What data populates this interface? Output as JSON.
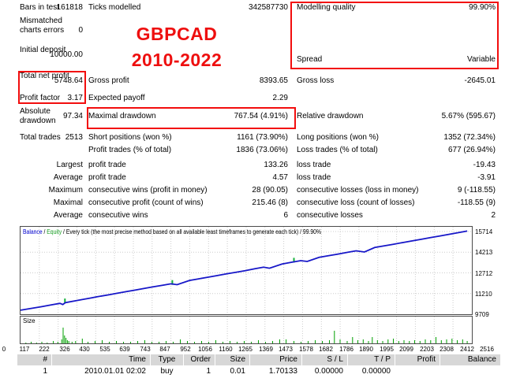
{
  "accent_red": "#f20d0d",
  "watermark": {
    "symbol": "GBPCAD",
    "period": "2010-2022"
  },
  "summary": {
    "rows": [
      {
        "c1l": "Bars in test",
        "c1v": "161818",
        "c2l": "Ticks modelled",
        "c2v": "342587730",
        "c3l": "Modelling quality",
        "c3v": "99.90%"
      },
      {
        "c1l": "Mismatched charts errors",
        "c1v": "0"
      },
      {
        "c1l": "Initial deposit",
        "c1v": "10000.00",
        "c3l": "Spread",
        "c3v": "Variable"
      },
      {
        "c1l": "Total net profit",
        "c1v": "5748.64",
        "c2l": "Gross profit",
        "c2v": "8393.65",
        "c3l": "Gross loss",
        "c3v": "-2645.01"
      },
      {
        "c1l": "Profit factor",
        "c1v": "3.17",
        "c2l": "Expected payoff",
        "c2v": "2.29"
      },
      {
        "c1l": "Absolute drawdown",
        "c1v": "97.34",
        "c2l": "Maximal drawdown",
        "c2v": "767.54 (4.91%)",
        "c3l": "Relative drawdown",
        "c3v": "5.67% (595.67)"
      },
      {
        "c1l": "Total trades",
        "c1v": "2513",
        "c2l": "Short positions (won %)",
        "c2v": "1161 (73.90%)",
        "c3l": "Long positions (won %)",
        "c3v": "1352 (72.34%)"
      },
      {
        "c2l": "Profit trades (% of total)",
        "c2v": "1836 (73.06%)",
        "c3l": "Loss trades (% of total)",
        "c3v": "677 (26.94%)"
      },
      {
        "c1v": "Largest",
        "c2l": "profit trade",
        "c2v": "133.26",
        "c3l": "loss trade",
        "c3v": "-19.43"
      },
      {
        "c1v": "Average",
        "c2l": "profit trade",
        "c2v": "4.57",
        "c3l": "loss trade",
        "c3v": "-3.91"
      },
      {
        "c1v": "Maximum",
        "c2l": "consecutive wins (profit in money)",
        "c2v": "28 (90.05)",
        "c3l": "consecutive losses (loss in money)",
        "c3v": "9 (-118.55)"
      },
      {
        "c1v": "Maximal",
        "c2l": "consecutive profit (count of wins)",
        "c2v": "215.46 (8)",
        "c3l": "consecutive loss (count of losses)",
        "c3v": "-118.55 (9)"
      },
      {
        "c1v": "Average",
        "c2l": "consecutive wins",
        "c2v": "6",
        "c3l": "consecutive losses",
        "c3v": "2"
      }
    ]
  },
  "chart_data": {
    "type": "line",
    "legend": {
      "balance_label": "Balance",
      "equity_label": "Equity",
      "separator": " / ",
      "description": "Every tick (the most precise method based on all available least timeframes to generate each tick)",
      "quality": "99.90%"
    },
    "balance_color": "#1717c8",
    "equity_color": "#15b03c",
    "grid_color": "#cccccc",
    "y_ticks": [
      15714,
      14213,
      12712,
      11210,
      9709
    ],
    "x_ticks": [
      0,
      117,
      222,
      326,
      430,
      535,
      639,
      743,
      847,
      952,
      1056,
      1160,
      1265,
      1369,
      1473,
      1578,
      1682,
      1786,
      1890,
      1995,
      2099,
      2203,
      2308,
      2412,
      2516
    ],
    "x_max": 2542,
    "y_value_top": 16060,
    "y_value_bottom": 9709,
    "series": [
      {
        "name": "Balance",
        "points": [
          [
            0,
            10000
          ],
          [
            80,
            10170
          ],
          [
            117,
            10250
          ],
          [
            180,
            10400
          ],
          [
            222,
            10500
          ],
          [
            238,
            10415
          ],
          [
            252,
            10545
          ],
          [
            326,
            10730
          ],
          [
            400,
            10900
          ],
          [
            430,
            10975
          ],
          [
            500,
            11130
          ],
          [
            535,
            11210
          ],
          [
            600,
            11360
          ],
          [
            639,
            11450
          ],
          [
            700,
            11590
          ],
          [
            743,
            11690
          ],
          [
            800,
            11815
          ],
          [
            847,
            11920
          ],
          [
            882,
            11855
          ],
          [
            952,
            12165
          ],
          [
            1000,
            12270
          ],
          [
            1056,
            12400
          ],
          [
            1100,
            12500
          ],
          [
            1160,
            12640
          ],
          [
            1220,
            12770
          ],
          [
            1265,
            12870
          ],
          [
            1320,
            13010
          ],
          [
            1369,
            13125
          ],
          [
            1402,
            13050
          ],
          [
            1473,
            13355
          ],
          [
            1530,
            13490
          ],
          [
            1578,
            13600
          ],
          [
            1615,
            13540
          ],
          [
            1682,
            13840
          ],
          [
            1740,
            13970
          ],
          [
            1786,
            14075
          ],
          [
            1845,
            14215
          ],
          [
            1890,
            14315
          ],
          [
            1937,
            14230
          ],
          [
            1995,
            14555
          ],
          [
            2060,
            14700
          ],
          [
            2099,
            14790
          ],
          [
            2160,
            14930
          ],
          [
            2203,
            15030
          ],
          [
            2260,
            15160
          ],
          [
            2308,
            15270
          ],
          [
            2360,
            15390
          ],
          [
            2412,
            15510
          ],
          [
            2470,
            15645
          ],
          [
            2516,
            15749
          ]
        ]
      }
    ],
    "equity_marks": [
      [
        250,
        10560
      ],
      [
        855,
        11900
      ],
      [
        1540,
        13520
      ]
    ],
    "size_panel": {
      "label": "Size",
      "bar_color": "#00a000",
      "bars": [
        [
          30,
          0.01
        ],
        [
          60,
          0.02
        ],
        [
          90,
          0.01
        ],
        [
          120,
          0.02
        ],
        [
          150,
          0.01
        ],
        [
          185,
          0.03
        ],
        [
          210,
          0.02
        ],
        [
          232,
          0.05
        ],
        [
          240,
          0.2
        ],
        [
          248,
          0.1
        ],
        [
          256,
          0.07
        ],
        [
          264,
          0.04
        ],
        [
          272,
          0.03
        ],
        [
          290,
          0.02
        ],
        [
          310,
          0.03
        ],
        [
          348,
          0.06
        ],
        [
          380,
          0.02
        ],
        [
          420,
          0.03
        ],
        [
          460,
          0.04
        ],
        [
          500,
          0.02
        ],
        [
          540,
          0.03
        ],
        [
          580,
          0.02
        ],
        [
          620,
          0.02
        ],
        [
          660,
          0.03
        ],
        [
          700,
          0.04
        ],
        [
          740,
          0.02
        ],
        [
          780,
          0.02
        ],
        [
          820,
          0.03
        ],
        [
          860,
          0.02
        ],
        [
          900,
          0.05
        ],
        [
          940,
          0.03
        ],
        [
          980,
          0.02
        ],
        [
          1020,
          0.03
        ],
        [
          1060,
          0.02
        ],
        [
          1100,
          0.04
        ],
        [
          1140,
          0.02
        ],
        [
          1180,
          0.03
        ],
        [
          1220,
          0.02
        ],
        [
          1260,
          0.03
        ],
        [
          1300,
          0.02
        ],
        [
          1340,
          0.04
        ],
        [
          1380,
          0.02
        ],
        [
          1420,
          0.03
        ],
        [
          1460,
          0.05
        ],
        [
          1496,
          0.05
        ],
        [
          1540,
          0.03
        ],
        [
          1580,
          0.02
        ],
        [
          1620,
          0.03
        ],
        [
          1660,
          0.04
        ],
        [
          1700,
          0.03
        ],
        [
          1740,
          0.04
        ],
        [
          1768,
          0.16
        ],
        [
          1800,
          0.05
        ],
        [
          1840,
          0.03
        ],
        [
          1870,
          0.08
        ],
        [
          1900,
          0.04
        ],
        [
          1930,
          0.05
        ],
        [
          1960,
          0.03
        ],
        [
          1981,
          0.08
        ],
        [
          2010,
          0.04
        ],
        [
          2040,
          0.03
        ],
        [
          2070,
          0.05
        ],
        [
          2100,
          0.06
        ],
        [
          2130,
          0.03
        ],
        [
          2160,
          0.04
        ],
        [
          2190,
          0.03
        ],
        [
          2220,
          0.04
        ],
        [
          2250,
          0.03
        ],
        [
          2280,
          0.05
        ],
        [
          2310,
          0.04
        ],
        [
          2340,
          0.08
        ],
        [
          2370,
          0.04
        ],
        [
          2400,
          0.05
        ],
        [
          2430,
          0.06
        ],
        [
          2460,
          0.04
        ],
        [
          2490,
          0.05
        ],
        [
          2516,
          0.03
        ]
      ]
    }
  },
  "trades_table": {
    "columns": [
      "#",
      "Time",
      "Type",
      "Order",
      "Size",
      "Price",
      "S / L",
      "T / P",
      "Profit",
      "Balance"
    ],
    "rows": [
      [
        "1",
        "2010.01.01 02:02",
        "buy",
        "1",
        "0.01",
        "1.70133",
        "0.00000",
        "0.00000",
        "",
        ""
      ]
    ]
  }
}
